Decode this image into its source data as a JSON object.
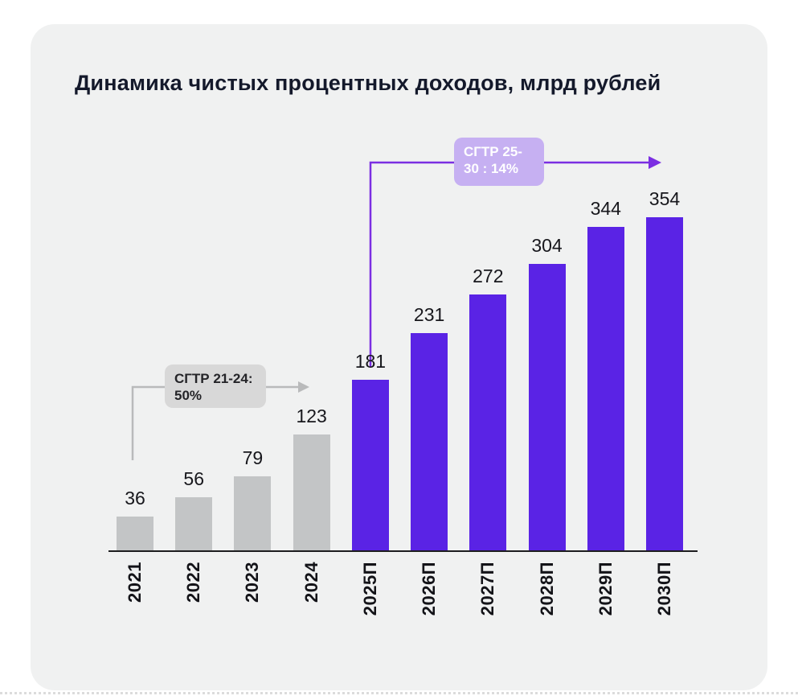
{
  "card": {
    "title": "Динамика чистых процентных доходов, млрд рублей"
  },
  "chart_data": {
    "type": "bar",
    "title": "Динамика чистых процентных доходов, млрд рублей",
    "ylabel": "млрд рублей",
    "xlabel": "",
    "categories": [
      "2021",
      "2022",
      "2023",
      "2024",
      "2025П",
      "2026П",
      "2027П",
      "2028П",
      "2029П",
      "2030П"
    ],
    "values": [
      36,
      56,
      79,
      123,
      181,
      231,
      272,
      304,
      344,
      354
    ],
    "forecast_start_index": 4,
    "ylim": [
      0,
      380
    ],
    "grid": false,
    "legend": false,
    "annotations": [
      {
        "label": "СГТР 21-24: 50%",
        "applies_to": "2021–2024",
        "style": "gray"
      },
      {
        "label": "СГТР 25-30 : 14%",
        "applies_to": "2025П–2030П",
        "style": "purple"
      }
    ],
    "colors": {
      "historical": "#c3c5c6",
      "forecast": "#5a23e5",
      "arrow_purple": "#7b2ee2",
      "arrow_gray": "#b9babb",
      "badge_gray_bg": "#d8d8d8",
      "badge_purple_bg": "#c6b0f2",
      "title_ink": "#14192b"
    }
  }
}
